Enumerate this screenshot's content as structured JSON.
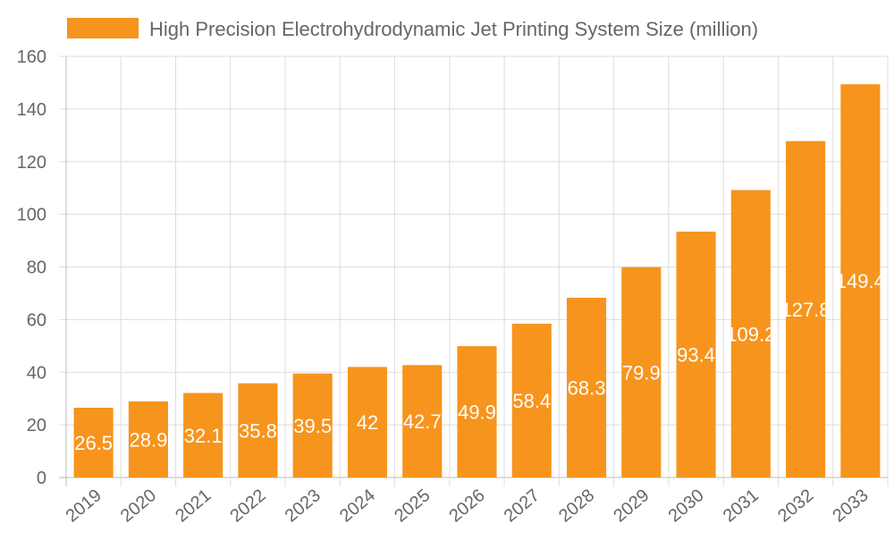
{
  "chart_data": {
    "type": "bar",
    "title": "",
    "legend": {
      "position": "top",
      "entries": [
        "High Precision Electrohydrodynamic Jet Printing System Size (million)"
      ]
    },
    "categories": [
      "2019",
      "2020",
      "2021",
      "2022",
      "2023",
      "2024",
      "2025",
      "2026",
      "2027",
      "2028",
      "2029",
      "2030",
      "2031",
      "2032",
      "2033"
    ],
    "series": [
      {
        "name": "High Precision Electrohydrodynamic Jet Printing System Size (million)",
        "values": [
          26.5,
          28.9,
          32.1,
          35.8,
          39.5,
          42,
          42.7,
          49.9,
          58.4,
          68.3,
          79.9,
          93.4,
          109.2,
          127.8,
          149.4
        ],
        "data_labels": [
          "26.5",
          "28.9",
          "32.1",
          "35.8",
          "39.5",
          "42",
          "42.7",
          "49.9",
          "58.4",
          "68.3",
          "79.9",
          "93.4",
          "109.2",
          "127.8",
          "149.4"
        ]
      }
    ],
    "xlabel": "",
    "ylabel": "",
    "ylim": [
      0,
      160
    ],
    "yticks": [
      "0",
      "20",
      "40",
      "60",
      "80",
      "100",
      "120",
      "140",
      "160"
    ],
    "grid": true,
    "colors": {
      "bar": "#f7941d",
      "grid": "#dddddd",
      "text": "#666666",
      "data_label": "#ffffff"
    }
  }
}
